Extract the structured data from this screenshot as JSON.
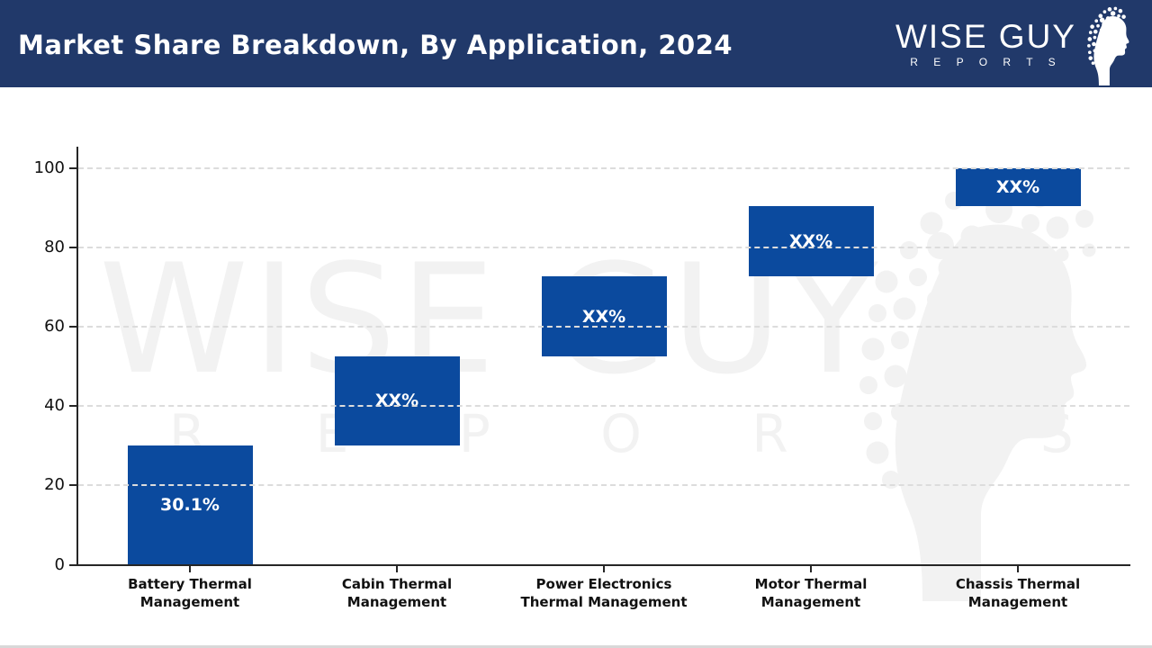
{
  "header": {
    "title": "Market Share Breakdown, By Application, 2024",
    "logo": {
      "brand_top": "WISE GUY",
      "brand_bottom": "R E P O R T S"
    }
  },
  "watermark": {
    "text_top": "WISE GUY",
    "text_bottom": "REPORTS"
  },
  "chart_data": {
    "type": "bar",
    "variant": "waterfall",
    "title": "Market Share Breakdown, By Application, 2024",
    "categories": [
      "Battery Thermal\nManagement",
      "Cabin Thermal\nManagement",
      "Power Electronics\nThermal Management",
      "Motor Thermal\nManagement",
      "Chassis Thermal\nManagement"
    ],
    "series": [
      {
        "name": "Market Share",
        "segments": [
          {
            "start": 0,
            "end": 30.1,
            "label": "30.1%"
          },
          {
            "start": 30.1,
            "end": 52.6,
            "label": "XX%"
          },
          {
            "start": 52.6,
            "end": 72.7,
            "label": "XX%"
          },
          {
            "start": 72.7,
            "end": 90.5,
            "label": "XX%"
          },
          {
            "start": 90.5,
            "end": 100,
            "label": "XX%"
          }
        ]
      }
    ],
    "xlabel": "",
    "ylabel": "",
    "ylim": [
      0,
      105
    ],
    "yticks": [
      0,
      20,
      40,
      60,
      80,
      100
    ],
    "grid": {
      "horizontal": true,
      "style": "dashed"
    },
    "legend": null
  },
  "colors": {
    "header_bg": "#21396a",
    "bar": "#0b4a9e",
    "bar_label": "#ffffff",
    "axis": "#262626",
    "grid": "#dcdcdc",
    "watermark": "#f2f2f2"
  }
}
